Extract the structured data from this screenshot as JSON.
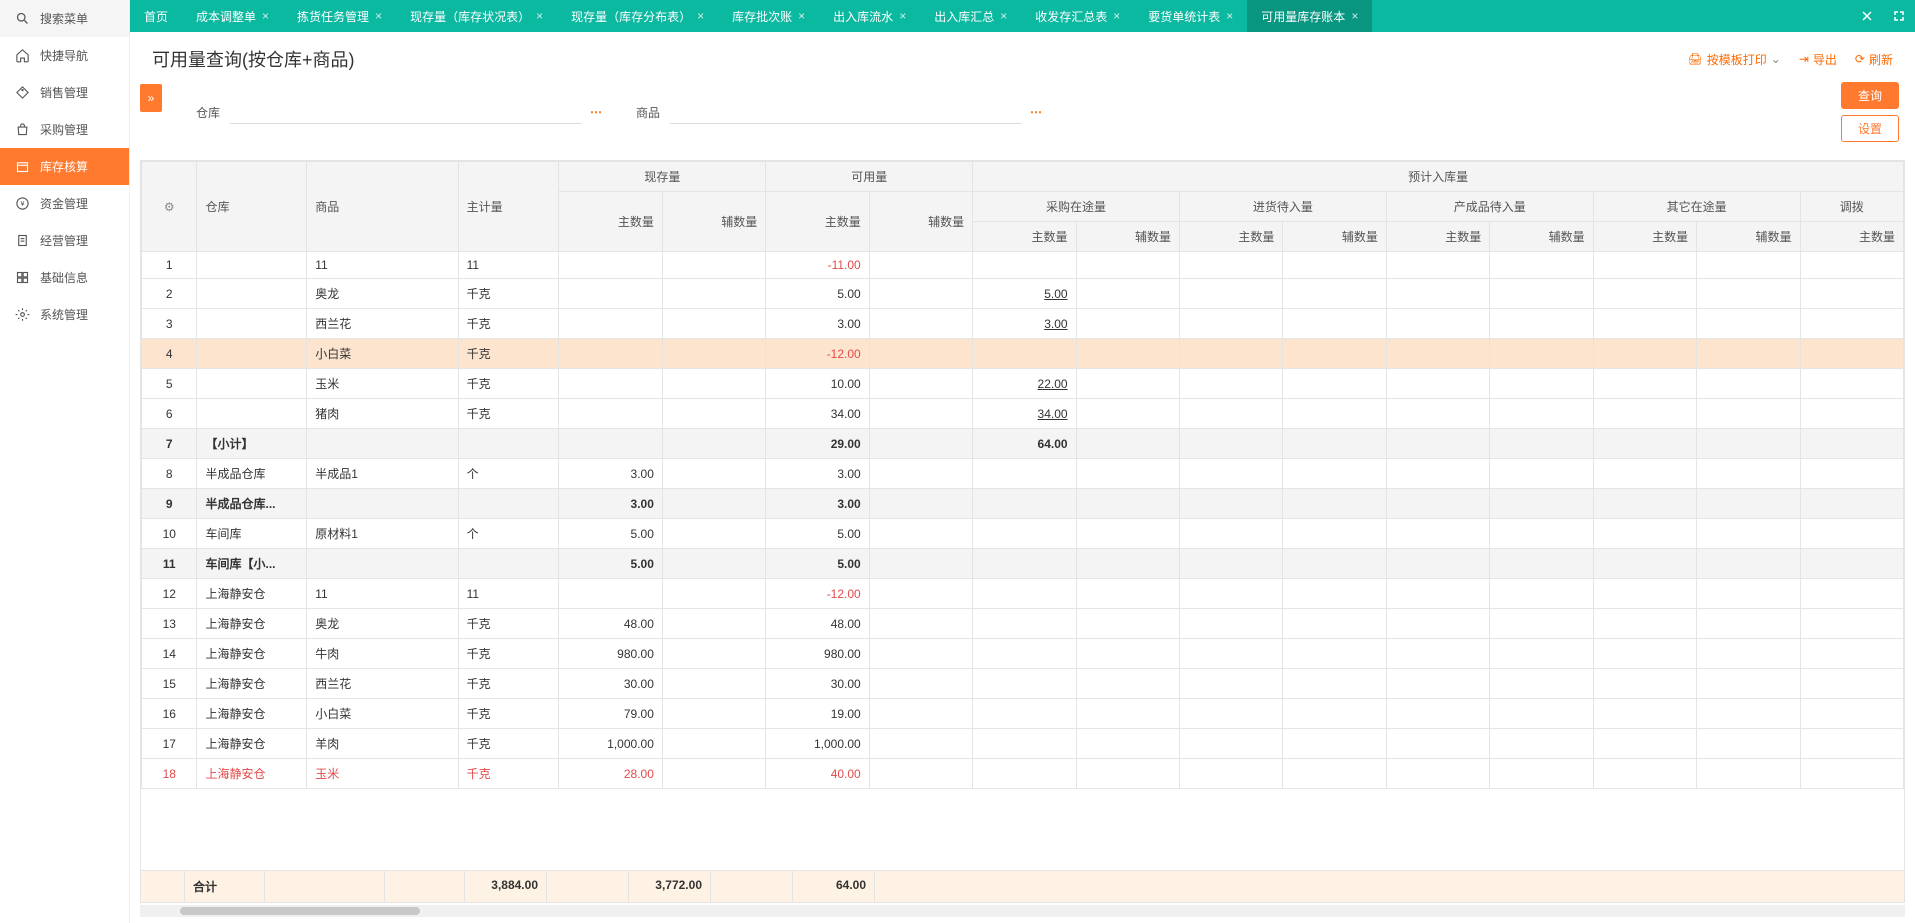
{
  "sidebar": {
    "search": "搜索菜单",
    "items": [
      {
        "label": "快捷导航",
        "icon": "home"
      },
      {
        "label": "销售管理",
        "icon": "tag"
      },
      {
        "label": "采购管理",
        "icon": "bag"
      },
      {
        "label": "库存核算",
        "icon": "box",
        "active": true
      },
      {
        "label": "资金管理",
        "icon": "money"
      },
      {
        "label": "经营管理",
        "icon": "clip"
      },
      {
        "label": "基础信息",
        "icon": "grid"
      },
      {
        "label": "系统管理",
        "icon": "gear"
      }
    ]
  },
  "tabs": [
    {
      "label": "首页",
      "closable": false
    },
    {
      "label": "成本调整单",
      "closable": true
    },
    {
      "label": "拣货任务管理",
      "closable": true
    },
    {
      "label": "现存量（库存状况表）",
      "closable": true
    },
    {
      "label": "现存量（库存分布表）",
      "closable": true
    },
    {
      "label": "库存批次账",
      "closable": true
    },
    {
      "label": "出入库流水",
      "closable": true
    },
    {
      "label": "出入库汇总",
      "closable": true
    },
    {
      "label": "收发存汇总表",
      "closable": true
    },
    {
      "label": "要货单统计表",
      "closable": true
    },
    {
      "label": "可用量库存账本",
      "closable": true,
      "active": true
    }
  ],
  "page": {
    "title": "可用量查询(按仓库+商品)",
    "actions": {
      "print": "按模板打印",
      "export": "导出",
      "refresh": "刷新"
    }
  },
  "filter": {
    "wh_label": "仓库",
    "prod_label": "商品",
    "query": "查询",
    "settings": "设置"
  },
  "table": {
    "headers": {
      "wh": "仓库",
      "prod": "商品",
      "unit": "主计量",
      "stock": "现存量",
      "avail": "可用量",
      "expected": "预计入库量",
      "main_qty": "主数量",
      "aux_qty": "辅数量",
      "po_transit": "采购在途量",
      "in_pending": "进货待入量",
      "fg_pending": "产成品待入量",
      "other_transit": "其它在途量",
      "adjust": "调拨"
    },
    "rows": [
      {
        "idx": "1",
        "wh": "",
        "prod": "11",
        "unit": "11",
        "avail_m": "-11.00",
        "neg": true
      },
      {
        "idx": "2",
        "wh": "",
        "prod": "奥龙",
        "unit": "千克",
        "avail_m": "5.00",
        "po_m": "5.00",
        "link": true
      },
      {
        "idx": "3",
        "wh": "",
        "prod": "西兰花",
        "unit": "千克",
        "avail_m": "3.00",
        "po_m": "3.00",
        "link": true
      },
      {
        "idx": "4",
        "wh": "",
        "prod": "小白菜",
        "unit": "千克",
        "avail_m": "-12.00",
        "neg": true,
        "hl": true
      },
      {
        "idx": "5",
        "wh": "",
        "prod": "玉米",
        "unit": "千克",
        "avail_m": "10.00",
        "po_m": "22.00",
        "link": true
      },
      {
        "idx": "6",
        "wh": "",
        "prod": "猪肉",
        "unit": "千克",
        "avail_m": "34.00",
        "po_m": "34.00",
        "link": true
      },
      {
        "idx": "7",
        "wh": "【小计】",
        "prod": "",
        "unit": "",
        "avail_m": "29.00",
        "po_m": "64.00",
        "sub": true
      },
      {
        "idx": "8",
        "wh": "半成品仓库",
        "prod": "半成品1",
        "unit": "个",
        "stock_m": "3.00",
        "avail_m": "3.00"
      },
      {
        "idx": "9",
        "wh": "半成品仓库...",
        "prod": "",
        "unit": "",
        "stock_m": "3.00",
        "avail_m": "3.00",
        "sub": true
      },
      {
        "idx": "10",
        "wh": "车间库",
        "prod": "原材料1",
        "unit": "个",
        "stock_m": "5.00",
        "avail_m": "5.00"
      },
      {
        "idx": "11",
        "wh": "车间库【小...",
        "prod": "",
        "unit": "",
        "stock_m": "5.00",
        "avail_m": "5.00",
        "sub": true
      },
      {
        "idx": "12",
        "wh": "上海静安仓",
        "prod": "11",
        "unit": "11",
        "avail_m": "-12.00",
        "neg": true
      },
      {
        "idx": "13",
        "wh": "上海静安仓",
        "prod": "奥龙",
        "unit": "千克",
        "stock_m": "48.00",
        "avail_m": "48.00"
      },
      {
        "idx": "14",
        "wh": "上海静安仓",
        "prod": "牛肉",
        "unit": "千克",
        "stock_m": "980.00",
        "avail_m": "980.00"
      },
      {
        "idx": "15",
        "wh": "上海静安仓",
        "prod": "西兰花",
        "unit": "千克",
        "stock_m": "30.00",
        "avail_m": "30.00"
      },
      {
        "idx": "16",
        "wh": "上海静安仓",
        "prod": "小白菜",
        "unit": "千克",
        "stock_m": "79.00",
        "avail_m": "19.00"
      },
      {
        "idx": "17",
        "wh": "上海静安仓",
        "prod": "羊肉",
        "unit": "千克",
        "stock_m": "1,000.00",
        "avail_m": "1,000.00"
      },
      {
        "idx": "18",
        "wh": "上海静安仓",
        "prod": "玉米",
        "unit": "千克",
        "stock_m": "28.00",
        "avail_m": "40.00",
        "cut": true
      }
    ],
    "total": {
      "label": "合计",
      "stock_m": "3,884.00",
      "avail_m": "3,772.00",
      "po_m": "64.00"
    }
  }
}
